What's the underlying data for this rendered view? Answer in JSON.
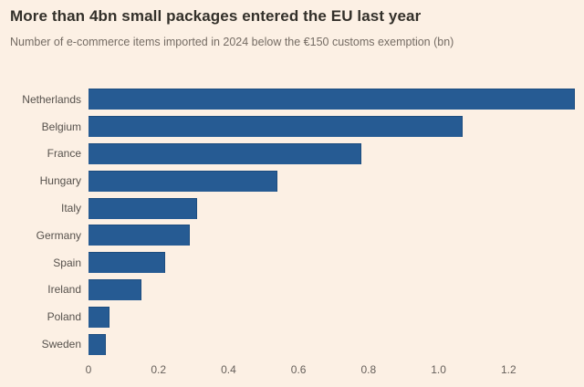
{
  "title": "More than 4bn small packages entered the EU last year",
  "subtitle": "Number of e-commerce items imported in 2024 below the €150 customs exemption (bn)",
  "colors": {
    "background": "#FCF0E4",
    "bar": "#265B93",
    "bar_border": "#1C4C7E",
    "title_text": "#33302A",
    "subtitle_text": "#756C64",
    "category_text": "#56514C",
    "tick_text": "#66605B"
  },
  "chart_data": {
    "type": "bar",
    "orientation": "horizontal",
    "title": "More than 4bn small packages entered the EU last year",
    "subtitle": "Number of e-commerce items imported in 2024 below the €150 customs exemption (bn)",
    "categories": [
      "Netherlands",
      "Belgium",
      "France",
      "Hungary",
      "Italy",
      "Germany",
      "Spain",
      "Ireland",
      "Poland",
      "Sweden"
    ],
    "values": [
      1.39,
      1.07,
      0.78,
      0.54,
      0.31,
      0.29,
      0.22,
      0.15,
      0.06,
      0.05
    ],
    "xlabel": "",
    "ylabel": "",
    "xlim": [
      0,
      1.4
    ],
    "xticks": [
      0,
      0.2,
      0.4,
      0.6,
      0.8,
      1.0,
      1.2
    ],
    "xtick_labels": [
      "0",
      "0.2",
      "0.4",
      "0.6",
      "0.8",
      "1.0",
      "1.2"
    ],
    "grid": false,
    "legend": false
  }
}
